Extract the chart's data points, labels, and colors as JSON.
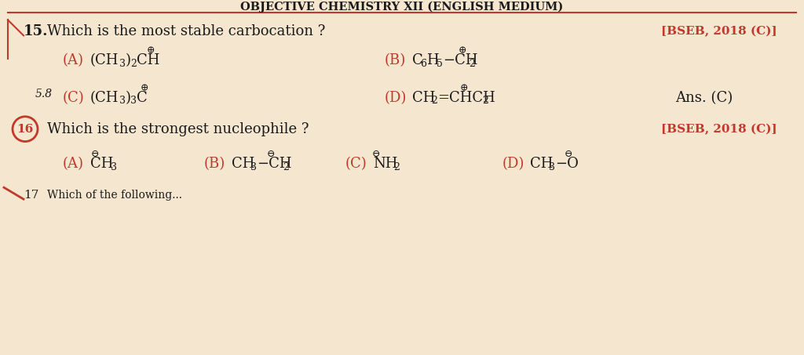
{
  "bg_color": "#f5e6d0",
  "header_text": "OBJECTIVE CHEMISTRY XII (ENGLISH MEDIUM)",
  "header_color": "#c0392b",
  "q15_text": "15.  Which is the most stable carbocation ?",
  "q15_ref": "[BSEB, 2018 (C)]",
  "q16_text": "16   Which is the strongest nucleophile ?",
  "q16_ref": "[BSEB, 2018 (C)]",
  "ans_text": "Ans. (C)",
  "text_color": "#1a1a1a",
  "pink_color": "#c0392b",
  "option_color": "#c0392b",
  "title_font": 13,
  "body_font": 13
}
